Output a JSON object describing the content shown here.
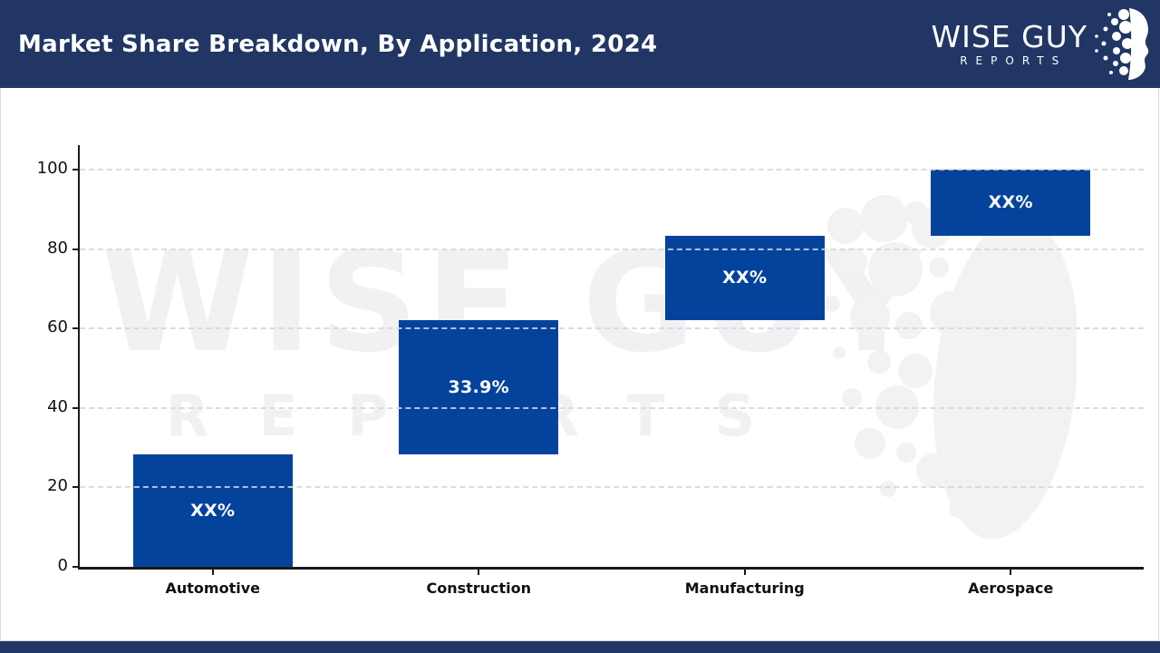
{
  "header": {
    "title": "Market Share Breakdown, By Application, 2024",
    "logo": {
      "name": "WISE GUY",
      "subtitle": "REPORTS"
    }
  },
  "watermark": {
    "line1": "WISE GUY",
    "line2": "REPORTS"
  },
  "chart_data": {
    "type": "bar",
    "subtype": "floating-waterfall",
    "title": "Market Share Breakdown, By Application, 2024",
    "categories": [
      "Automotive",
      "Construction",
      "Manufacturing",
      "Aerospace"
    ],
    "segments": [
      {
        "category": "Automotive",
        "start": 0,
        "end": 28.2,
        "size": 28.2,
        "label": "XX%"
      },
      {
        "category": "Construction",
        "start": 28.2,
        "end": 62.1,
        "size": 33.9,
        "label": "33.9%"
      },
      {
        "category": "Manufacturing",
        "start": 62.1,
        "end": 83.4,
        "size": 21.3,
        "label": "XX%"
      },
      {
        "category": "Aerospace",
        "start": 83.4,
        "end": 100.0,
        "size": 16.6,
        "label": "XX%"
      }
    ],
    "yticks": [
      0,
      20,
      40,
      60,
      80,
      100
    ],
    "ylim": [
      0,
      106
    ],
    "xlabel": "",
    "ylabel": "",
    "grid": "horizontal-dashed",
    "legend": "none"
  },
  "colors": {
    "header_navy": "#213664",
    "footer_navy": "#213664",
    "bar_blue": "#04439c",
    "grid_gray": "#d9d9d9",
    "watermark_gray": "#f1f1f4",
    "axis_black": "#1a1a1a",
    "label_white": "#ffffff"
  }
}
